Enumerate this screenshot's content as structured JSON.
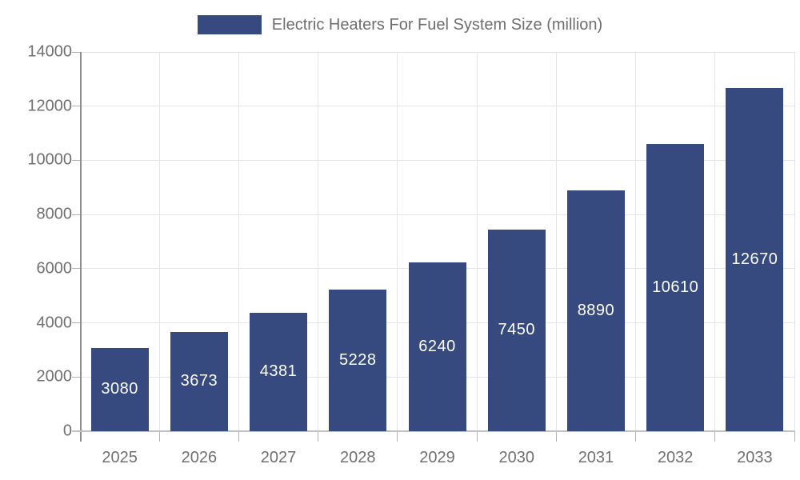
{
  "chart_data": {
    "type": "bar",
    "title": "Electric Heaters For Fuel System Size (million)",
    "legend": {
      "label": "Electric Heaters For Fuel System Size (million)",
      "position": "top-center"
    },
    "categories": [
      "2025",
      "2026",
      "2027",
      "2028",
      "2029",
      "2030",
      "2031",
      "2032",
      "2033"
    ],
    "series": [
      {
        "name": "Electric Heaters For Fuel System Size (million)",
        "values": [
          3080,
          3673,
          4381,
          5228,
          6240,
          7450,
          8890,
          10610,
          12670
        ]
      }
    ],
    "value_labels_shown": true,
    "value_label_position": "inside-center",
    "xlabel": "",
    "ylabel": "",
    "ylim": [
      0,
      14000
    ],
    "yticks": [
      0,
      2000,
      4000,
      6000,
      8000,
      10000,
      12000,
      14000
    ],
    "grid": "horizontal-and-vertical",
    "legend_position": "top"
  },
  "colors": {
    "bar": "#364A80",
    "value_label": "#FFFFFF",
    "legend_text": "#6E6E6E",
    "tick_label": "#707070",
    "grid_line": "#E5E5E5",
    "y_axis_line": "#8F8F8F",
    "baseline": "#C0C0C0",
    "tick_mark": "#B3B3B3",
    "background": "#FFFFFF"
  }
}
